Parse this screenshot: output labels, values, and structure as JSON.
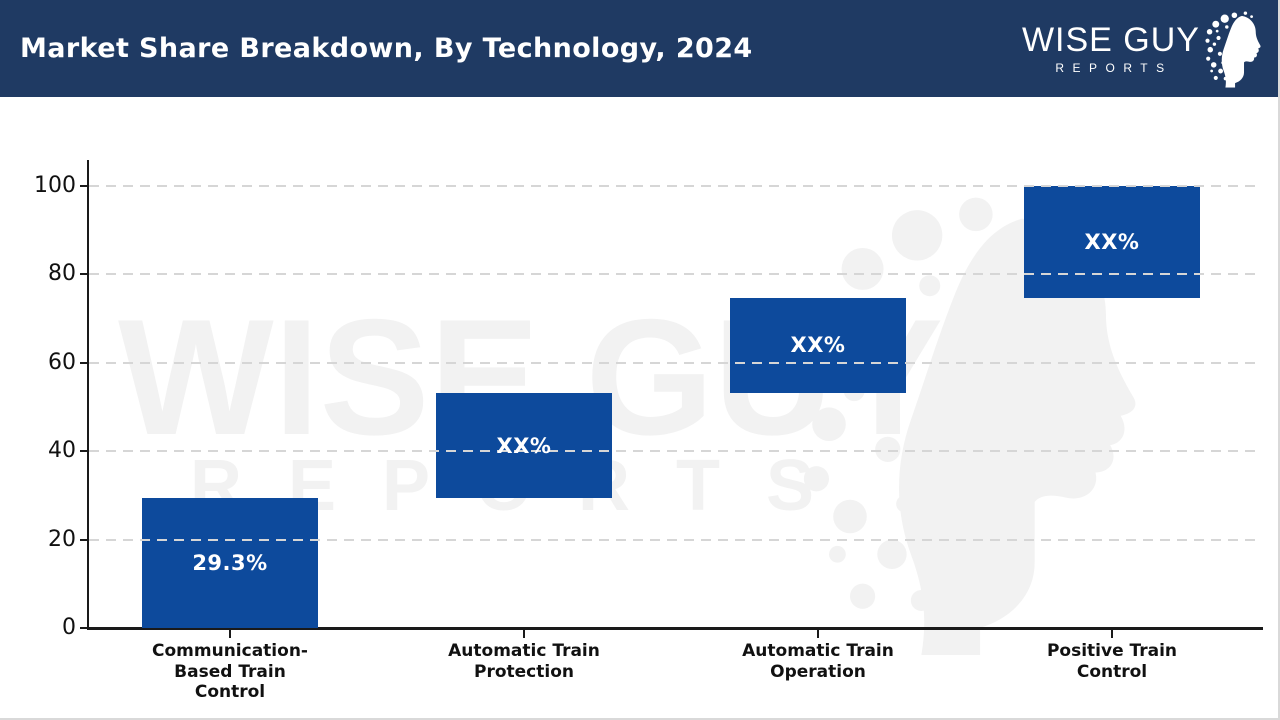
{
  "header": {
    "title": "Market Share Breakdown, By Technology, 2024",
    "logo": {
      "brand": "WISE GUY",
      "sub": "REPORTS"
    }
  },
  "watermark": {
    "brand": "WISE GUY",
    "sub": "REPORTS"
  },
  "colors": {
    "header_bg": "#1f3a63",
    "bar": "#0d4a9c",
    "grid": "#d6d6d6",
    "watermark": "#f2f2f2",
    "axis": "#1a1a1a",
    "bar_label": "#ffffff"
  },
  "chart_data": {
    "type": "bar",
    "subtype": "waterfall",
    "title": "Market Share Breakdown, By Technology, 2024",
    "categories": [
      "Communication-\nBased Train\nControl",
      "Automatic Train\nProtection",
      "Automatic Train\nOperation",
      "Positive Train\nControl"
    ],
    "segments": [
      {
        "category": "Communication-Based Train Control",
        "start": 0,
        "end": 29.3,
        "label": "29.3%"
      },
      {
        "category": "Automatic Train Protection",
        "start": 29.3,
        "end": 53.2,
        "label": "XX%"
      },
      {
        "category": "Automatic Train Operation",
        "start": 53.2,
        "end": 74.7,
        "label": "XX%"
      },
      {
        "category": "Positive Train Control",
        "start": 74.7,
        "end": 100,
        "label": "XX%"
      }
    ],
    "y_ticks": [
      0,
      20,
      40,
      60,
      80,
      100
    ],
    "ylim": [
      0,
      106
    ],
    "xlabel": "",
    "ylabel": "",
    "grid": "horizontal-dashed-over-bars",
    "legend": "none",
    "bar_color": "#0d4a9c"
  }
}
